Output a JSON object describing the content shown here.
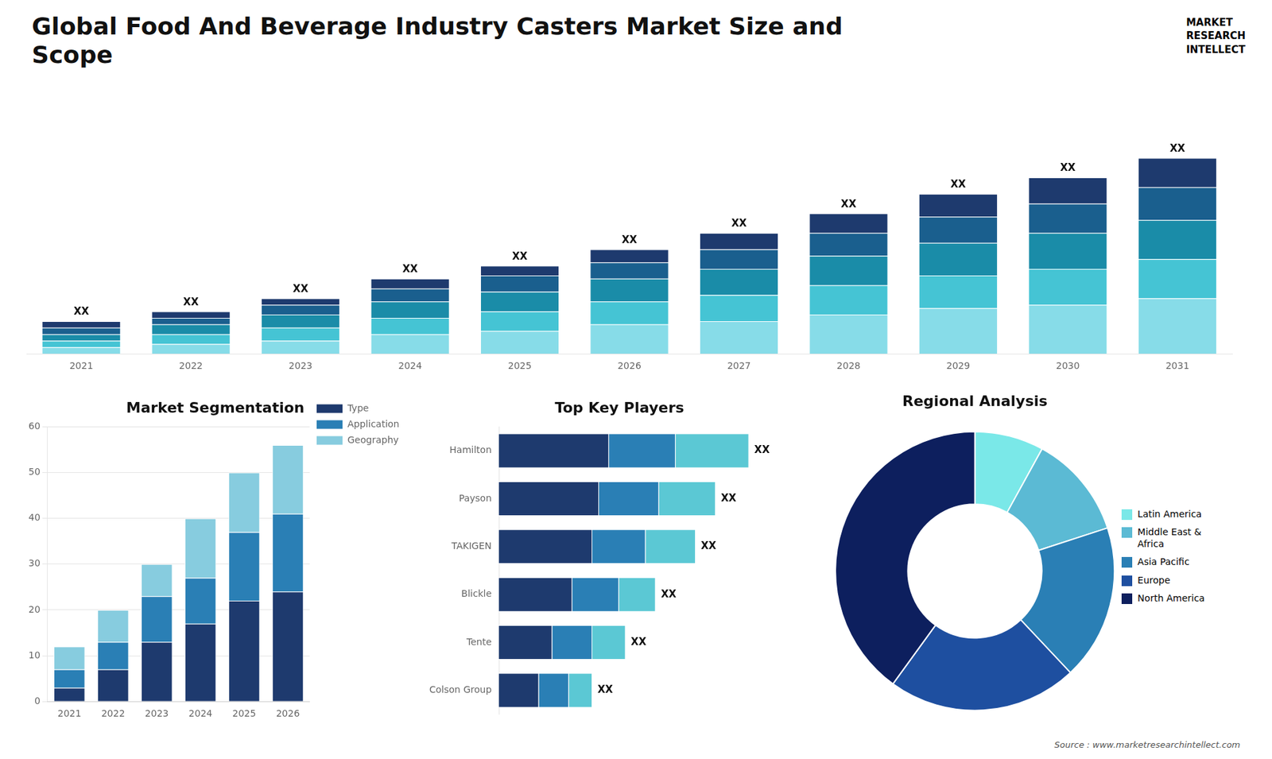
{
  "title": "Global Food And Beverage Industry Casters Market Size and\nScope",
  "annotations": [
    "MARKET",
    "RESEARCH",
    "INTELLECT",
    "Source : www.marketresearchintellect.com"
  ],
  "chart_data": [
    {
      "type": "bar",
      "stacked": true,
      "categories": [
        "2021",
        "2022",
        "2023",
        "2024",
        "2025",
        "2026",
        "2027",
        "2028",
        "2029",
        "2030",
        "2031"
      ],
      "series": [
        {
          "color": "#87dce8",
          "values": [
            2,
            3,
            4,
            6,
            7,
            9,
            10,
            12,
            14,
            15,
            17
          ]
        },
        {
          "color": "#45c4d4",
          "values": [
            2,
            3,
            4,
            5,
            6,
            7,
            8,
            9,
            10,
            11,
            12
          ]
        },
        {
          "color": "#1a8ca8",
          "values": [
            2,
            3,
            4,
            5,
            6,
            7,
            8,
            9,
            10,
            11,
            12
          ]
        },
        {
          "color": "#1a5f8e",
          "values": [
            2,
            2,
            3,
            4,
            5,
            5,
            6,
            7,
            8,
            9,
            10
          ]
        },
        {
          "color": "#1e3a6e",
          "values": [
            2,
            2,
            2,
            3,
            3,
            4,
            5,
            6,
            7,
            8,
            9
          ]
        }
      ],
      "ylim": [
        0,
        81
      ],
      "tick_labels": "x",
      "grid": false,
      "annotations": [
        {
          "x": "2021",
          "text": "XX"
        },
        {
          "x": "2022",
          "text": "XX"
        },
        {
          "x": "2023",
          "text": "XX"
        },
        {
          "x": "2024",
          "text": "XX"
        },
        {
          "x": "2025",
          "text": "XX"
        },
        {
          "x": "2026",
          "text": "XX"
        },
        {
          "x": "2027",
          "text": "XX"
        },
        {
          "x": "2028",
          "text": "XX"
        },
        {
          "x": "2029",
          "text": "XX"
        },
        {
          "x": "2030",
          "text": "XX"
        },
        {
          "x": "2031",
          "text": "XX"
        }
      ]
    },
    {
      "type": "bar",
      "title": "Market Segmentation",
      "stacked": true,
      "categories": [
        "2021",
        "2022",
        "2023",
        "2024",
        "2025",
        "2026"
      ],
      "series": [
        {
          "name": "Type",
          "color": "#1e3a6e",
          "values": [
            3,
            7,
            13,
            17,
            22,
            24
          ]
        },
        {
          "name": "Application",
          "color": "#2a7fb5",
          "values": [
            4,
            6,
            10,
            10,
            15,
            17
          ]
        },
        {
          "name": "Geography",
          "color": "#87ccdf",
          "values": [
            5,
            7,
            7,
            13,
            13,
            15
          ]
        }
      ],
      "ylim": [
        0,
        60
      ],
      "yticks": [
        0,
        10,
        20,
        30,
        40,
        50,
        60
      ],
      "grid": true,
      "legend": "right"
    },
    {
      "type": "bar",
      "title": "Top Key Players",
      "orientation": "horizontal",
      "stacked": true,
      "categories": [
        "Hamilton",
        "Payson",
        "TAKIGEN",
        "Blickle",
        "Tente",
        "Colson Group"
      ],
      "series": [
        {
          "color": "#1e3a6e",
          "values": [
            33,
            30,
            28,
            22,
            16,
            12
          ]
        },
        {
          "color": "#2a7fb5",
          "values": [
            20,
            18,
            16,
            14,
            12,
            9
          ]
        },
        {
          "color": "#5bc8d4",
          "values": [
            22,
            17,
            15,
            11,
            10,
            7
          ]
        }
      ],
      "xlim": [
        0,
        93.75
      ],
      "tick_labels": "y",
      "grid": false,
      "annotations": [
        {
          "y": "Hamilton",
          "text": "XX"
        },
        {
          "y": "Payson",
          "text": "XX"
        },
        {
          "y": "TAKIGEN",
          "text": "XX"
        },
        {
          "y": "Blickle",
          "text": "XX"
        },
        {
          "y": "Tente",
          "text": "XX"
        },
        {
          "y": "Colson Group",
          "text": "XX"
        }
      ]
    },
    {
      "type": "donut",
      "title": "Regional Analysis",
      "categories": [
        "Latin America",
        "Middle East &\nAfrica",
        "Asia Pacific",
        "Europe",
        "North America"
      ],
      "values": [
        8,
        12,
        18,
        22,
        40
      ],
      "colors": [
        "#7ae8e8",
        "#5bbad4",
        "#2a7fb5",
        "#1e4fa0",
        "#0d1f5e"
      ],
      "legend": "right"
    }
  ]
}
